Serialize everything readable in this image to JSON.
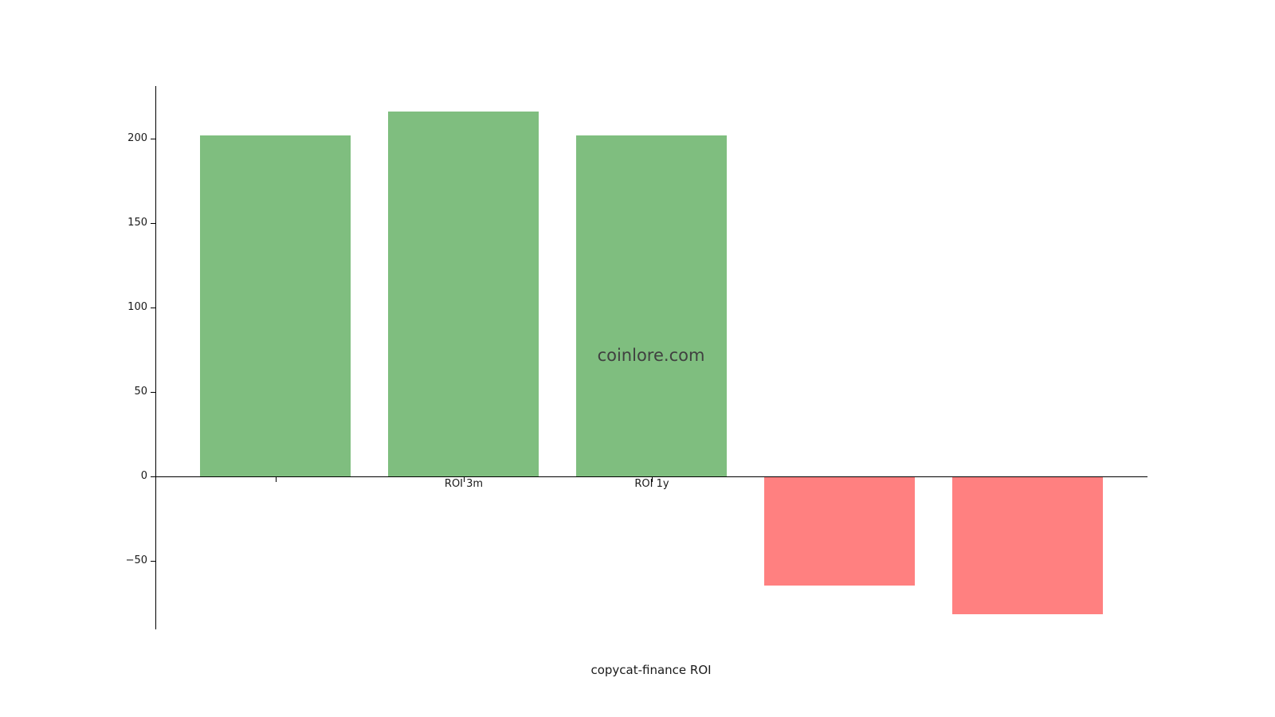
{
  "chart_data": {
    "type": "bar",
    "title": "copycat-finance ROI",
    "watermark": "coinlore.com",
    "categories": [
      "",
      "ROI 3m",
      "ROI 1y",
      "",
      ""
    ],
    "values": [
      202,
      216,
      202,
      -64,
      -81
    ],
    "xtick_marks_visible": [
      true,
      true,
      true,
      false,
      false
    ],
    "yticks": [
      200,
      150,
      100,
      50,
      0,
      -50
    ],
    "ylim": [
      -91,
      231
    ],
    "xlabel": "copycat-finance ROI",
    "ylabel": "",
    "grid": false,
    "legend": false,
    "colors": {
      "positive_bar": "#7fbe7f",
      "negative_bar": "#ff8080",
      "axis": "#000000",
      "tick_label": "#1a1a1a",
      "watermark": "#404040",
      "title": "#1a1a1a"
    }
  }
}
